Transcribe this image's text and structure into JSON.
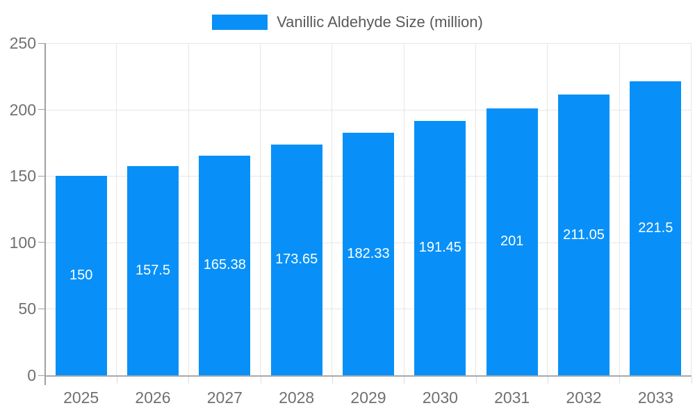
{
  "chart_data": {
    "type": "bar",
    "title": "Vanillic Aldehyde Size (million)",
    "categories": [
      "2025",
      "2026",
      "2027",
      "2028",
      "2029",
      "2030",
      "2031",
      "2032",
      "2033"
    ],
    "values": [
      150,
      157.5,
      165.38,
      173.65,
      182.33,
      191.45,
      201,
      211.05,
      221.5
    ],
    "xlabel": "",
    "ylabel": "",
    "ylim": [
      0,
      250
    ],
    "y_ticks": [
      0,
      50,
      100,
      150,
      200,
      250
    ],
    "grid": true,
    "legend_position": "top-center",
    "value_labels_inside_bars": true
  },
  "colors": {
    "bar": "#0890f8",
    "grid_line": "#e6e6e6",
    "y_axis_line": "#a0a0a0",
    "x_axis_line": "#a8a8a8",
    "x_tick": "#dddddd",
    "y_tick": "#a0a0a0",
    "axis_label_text": "#707070",
    "legend_text": "#595959",
    "value_label_text": "#ffffff",
    "background": "#ffffff"
  }
}
